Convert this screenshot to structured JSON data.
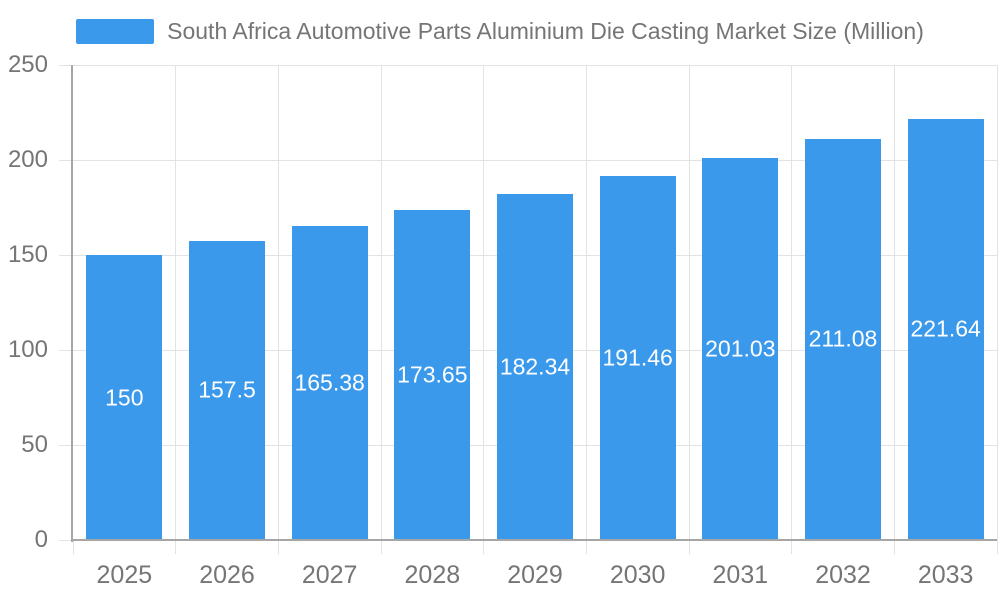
{
  "chart_data": {
    "type": "bar",
    "title": "South Africa Automotive Parts Aluminium Die Casting Market Size (Million)",
    "legend": [
      "South Africa Automotive Parts Aluminium Die Casting Market Size (Million)"
    ],
    "legend_position": "top",
    "categories": [
      "2025",
      "2026",
      "2027",
      "2028",
      "2029",
      "2030",
      "2031",
      "2032",
      "2033"
    ],
    "values": [
      150,
      157.5,
      165.38,
      173.65,
      182.34,
      191.46,
      201.03,
      211.08,
      221.64
    ],
    "data_labels": [
      "150",
      "157.5",
      "165.38",
      "173.65",
      "182.34",
      "191.46",
      "201.03",
      "211.08",
      "221.64"
    ],
    "xlabel": "",
    "ylabel": "",
    "ylim": [
      0,
      250
    ],
    "y_ticks": [
      0,
      50,
      100,
      150,
      200,
      250
    ],
    "y_tick_labels": [
      "0",
      "50",
      "100",
      "150",
      "200",
      "250"
    ],
    "grid": true,
    "colors": {
      "bar": "#3b99ec",
      "bar_label_text": "#ffffff",
      "axis_text": "#757575",
      "title_text": "#757575",
      "gridline": "#e3e3e3",
      "axis_line": "#a6a6a6",
      "background": "#ffffff"
    }
  }
}
